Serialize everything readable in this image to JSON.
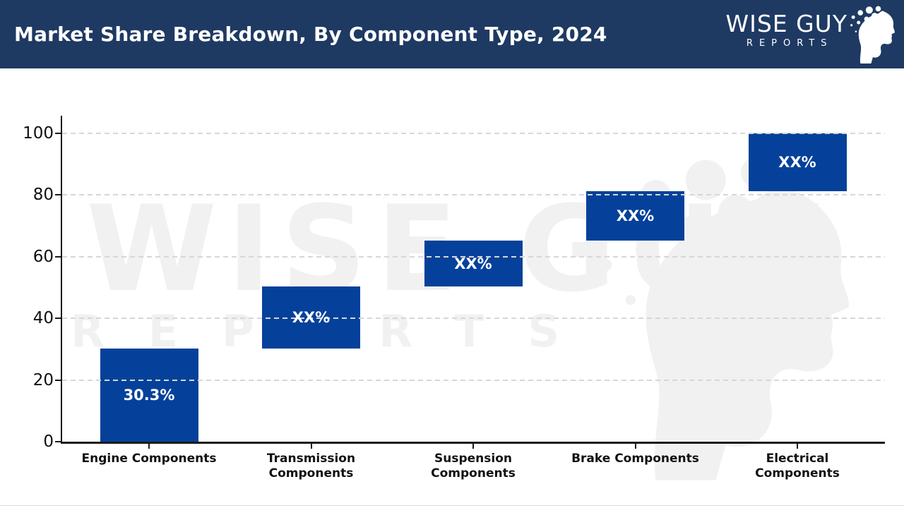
{
  "header": {
    "title": "Market Share Breakdown, By Component Type, 2024",
    "bg_color": "#1e3a63",
    "logo": {
      "name": "WISE GUY",
      "sub": "REPORTS"
    }
  },
  "watermark": {
    "line1": "WISE GUY",
    "line2": "REPORTS"
  },
  "chart_data": {
    "type": "bar",
    "subtype": "waterfall",
    "title": "Market Share Breakdown, By Component Type, 2024",
    "unit": "%",
    "categories": [
      "Engine Components",
      "Transmission\nComponents",
      "Suspension\nComponents",
      "Brake Components",
      "Electrical\nComponents"
    ],
    "segments": [
      {
        "category": "Engine Components",
        "start": 0,
        "end": 30.3,
        "label": "30.3%"
      },
      {
        "category": "Transmission Components",
        "start": 30.3,
        "end": 50.3,
        "label": "XX%"
      },
      {
        "category": "Suspension Components",
        "start": 50.3,
        "end": 65.2,
        "label": "XX%"
      },
      {
        "category": "Brake Components",
        "start": 65.2,
        "end": 81.2,
        "label": "XX%"
      },
      {
        "category": "Electrical Components",
        "start": 81.2,
        "end": 100,
        "label": "XX%"
      }
    ],
    "ylim": [
      0,
      100
    ],
    "yticks": [
      0,
      20,
      40,
      60,
      80,
      100
    ],
    "grid": "horizontal-dashed",
    "gridline_color": "#d7d7d7",
    "bar_color": "#05419a",
    "bar_label_color": "#ffffff",
    "axis_color": "#1a1a1a",
    "legend": null
  }
}
